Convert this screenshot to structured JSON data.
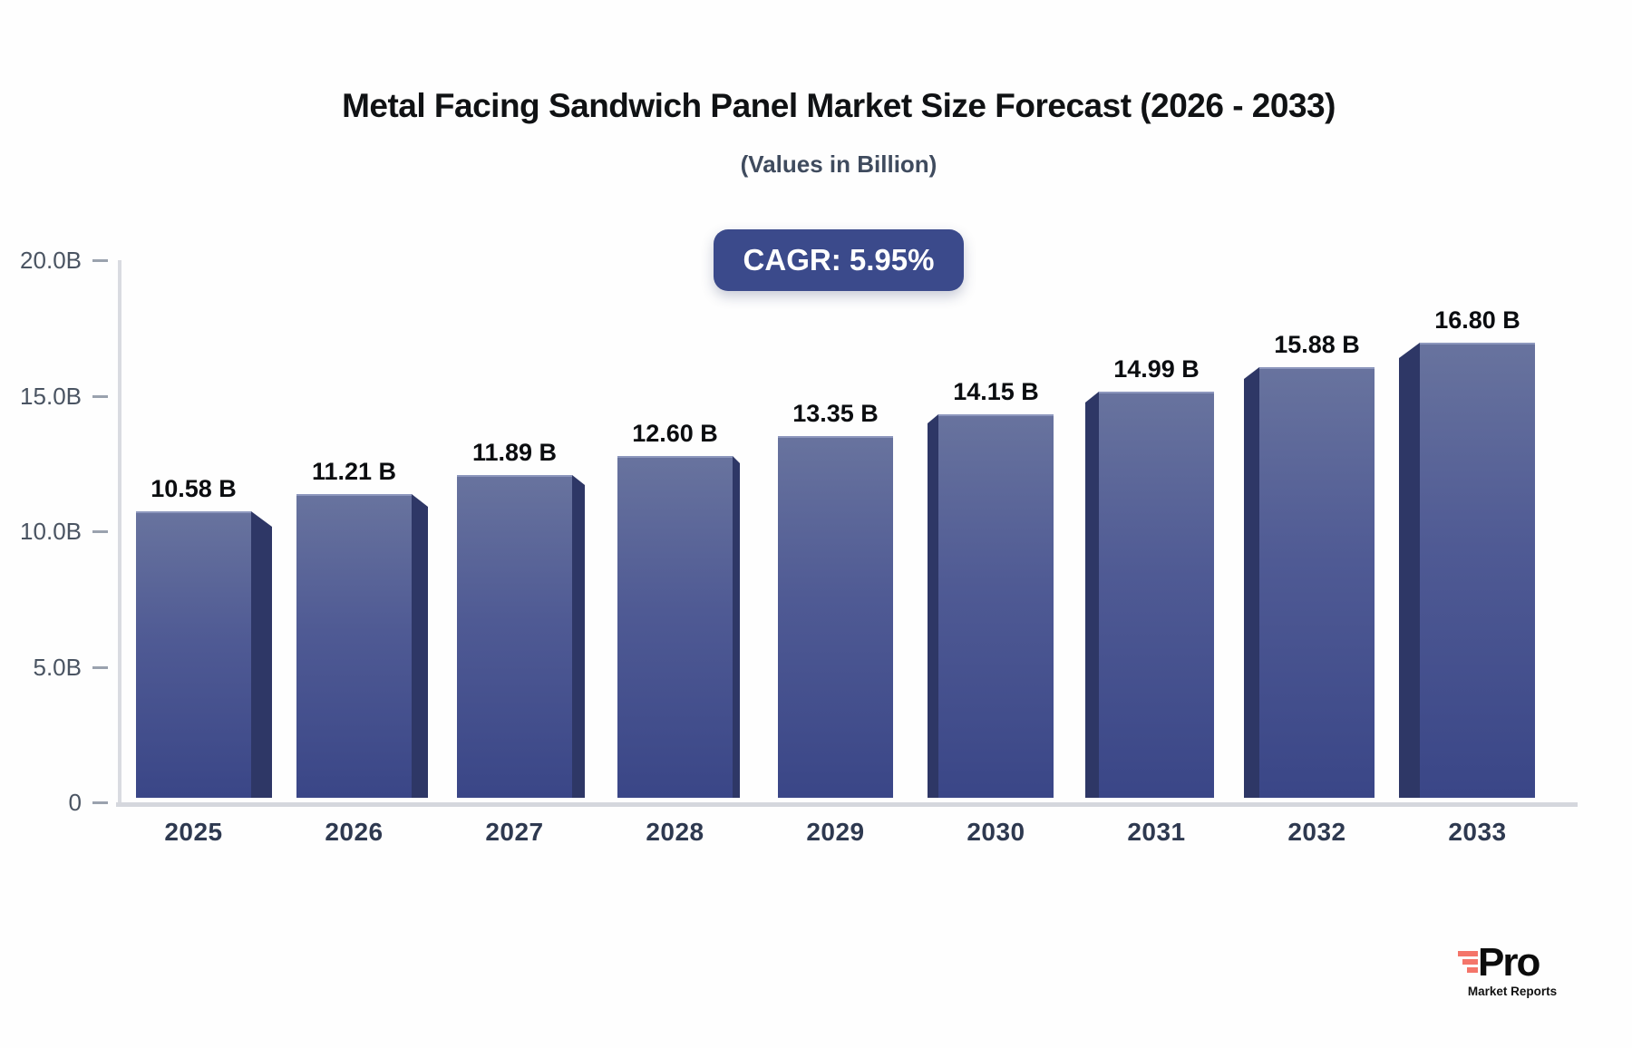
{
  "header": {
    "title": "Metal Facing Sandwich Panel Market Size Forecast (2026 - 2033)",
    "subtitle": "(Values in Billion)",
    "cagr_badge": "CAGR: 5.95%",
    "badge_color": "#3b4a8b"
  },
  "chart_data": {
    "type": "bar",
    "title": "Metal Facing Sandwich Panel Market Size Forecast (2026 - 2033)",
    "subtitle": "(Values in Billion)",
    "unit": "Billion",
    "cagr_percent": 5.95,
    "categories": [
      "2025",
      "2026",
      "2027",
      "2028",
      "2029",
      "2030",
      "2031",
      "2032",
      "2033"
    ],
    "values": [
      10.58,
      11.21,
      11.89,
      12.6,
      13.35,
      14.15,
      14.99,
      15.88,
      16.8
    ],
    "value_labels": [
      "10.58 B",
      "11.21 B",
      "11.89 B",
      "12.60 B",
      "13.35 B",
      "14.15 B",
      "14.99 B",
      "15.88 B",
      "16.80 B"
    ],
    "ylim": [
      0,
      20
    ],
    "yticks": [
      {
        "value": 20,
        "label": "20.0B"
      },
      {
        "value": 15,
        "label": "15.0B"
      },
      {
        "value": 10,
        "label": "10.0B"
      },
      {
        "value": 5,
        "label": "5.0B"
      },
      {
        "value": 0,
        "label": "0"
      }
    ],
    "grid": false,
    "legend": false,
    "bar_style_3d": true,
    "colors": {
      "bar_front_top": "#68739e",
      "bar_front_bottom": "#3a4687",
      "bar_side": "#2e3766",
      "axis": "#d9dbe1",
      "tick": "#9aa2ae"
    },
    "side_widths": [
      23,
      18,
      14,
      8,
      0,
      12,
      15,
      17,
      23
    ],
    "side_direction": [
      "right",
      "right",
      "right",
      "right",
      "none",
      "left",
      "left",
      "left",
      "left"
    ]
  },
  "footer": {
    "logo_brand": "Pro",
    "logo_tagline": "Market Reports",
    "logo_stripe_color": "#f4756a"
  }
}
